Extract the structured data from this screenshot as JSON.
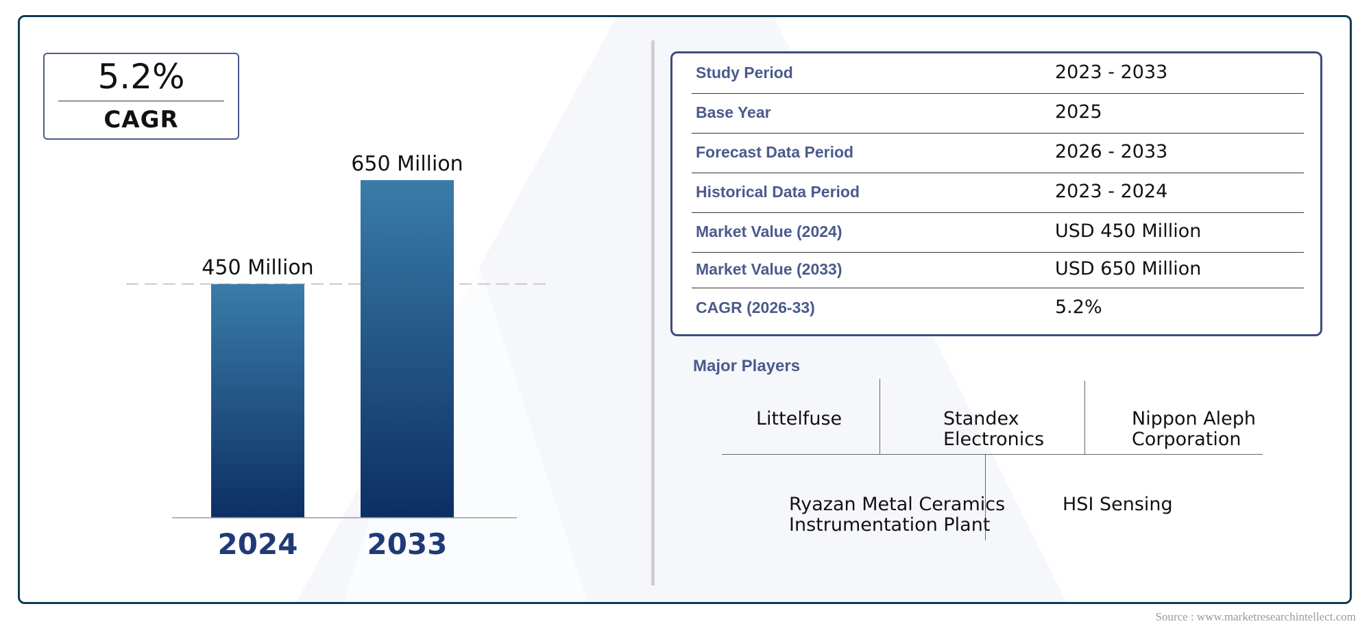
{
  "cagr_box": {
    "value": "5.2%",
    "label": "CAGR"
  },
  "chart_data": {
    "type": "bar",
    "categories": [
      "2024",
      "2033"
    ],
    "values": [
      450,
      650
    ],
    "data_labels": [
      "450 Million",
      "650 Million"
    ],
    "title": "",
    "xlabel": "",
    "ylabel": "",
    "reference_line": 450,
    "colors": {
      "bar_top": "#3a7ca8",
      "bar_bottom": "#0c2f63",
      "axis_label": "#1f3a78"
    }
  },
  "info_table": {
    "rows": [
      {
        "label": "Study Period",
        "value": "2023 - 2033"
      },
      {
        "label": "Base Year",
        "value": "2025"
      },
      {
        "label": "Forecast Data Period",
        "value": "2026 - 2033"
      },
      {
        "label": "Historical Data Period",
        "value": "2023 - 2024"
      },
      {
        "label": "Market Value (2024)",
        "value": "USD 450 Million"
      },
      {
        "label": "Market Value (2033)",
        "value": "USD 650 Million"
      },
      {
        "label": "CAGR (2026-33)",
        "value": "5.2%"
      }
    ]
  },
  "major_players": {
    "heading": "Major Players",
    "players": [
      "Littelfuse",
      "Standex\nElectronics",
      "Nippon Aleph\nCorporation",
      "Ryazan Metal Ceramics\nInstrumentation Plant",
      "HSI Sensing"
    ]
  },
  "source": "Source : www.marketresearchintellect.com",
  "colors": {
    "frame": "#0f3a52",
    "label_blue": "#4a5a8c"
  }
}
